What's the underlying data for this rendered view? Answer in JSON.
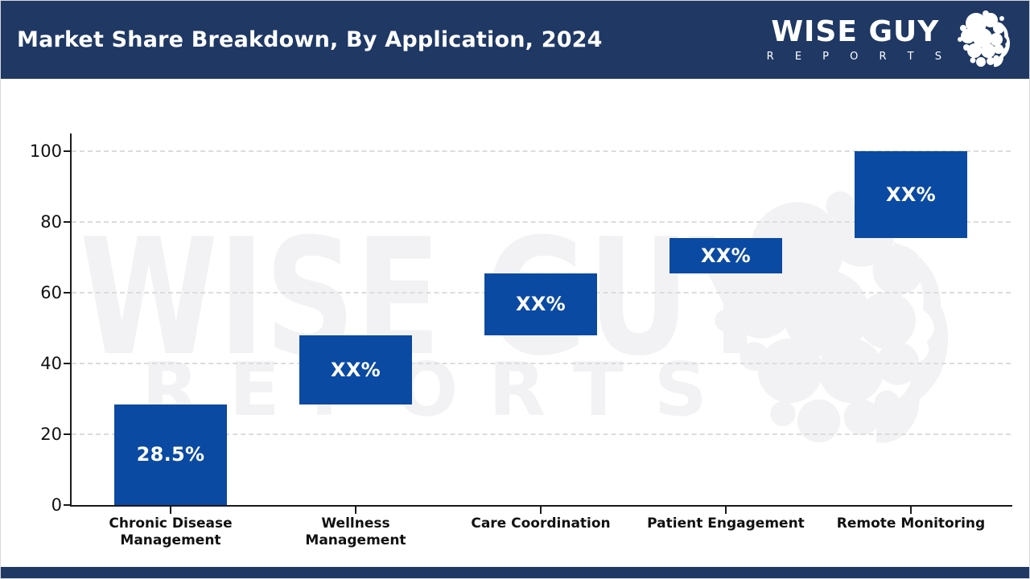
{
  "header": {
    "title": "Market Share Breakdown, By Application, 2024",
    "brand": {
      "line1": "WISE GUY",
      "line2": "R E P O R T S"
    }
  },
  "watermark": {
    "line1": "WISE GUY",
    "line2": "REPORTS"
  },
  "chart_data": {
    "type": "bar",
    "subtype": "waterfall",
    "title": "Market Share Breakdown, By Application, 2024",
    "xlabel": "",
    "ylabel": "",
    "categories": [
      "Chronic Disease\nManagement",
      "Wellness\nManagement",
      "Care Coordination",
      "Patient Engagement",
      "Remote Monitoring"
    ],
    "bars": [
      {
        "category": "Chronic Disease Management",
        "start": 0,
        "end": 28.5,
        "value": 28.5,
        "label": "28.5%"
      },
      {
        "category": "Wellness Management",
        "start": 28.5,
        "end": 48,
        "value": 19.5,
        "label": "XX%"
      },
      {
        "category": "Care Coordination",
        "start": 48,
        "end": 65.5,
        "value": 17.5,
        "label": "XX%"
      },
      {
        "category": "Patient Engagement",
        "start": 65.5,
        "end": 75.5,
        "value": 10,
        "label": "XX%"
      },
      {
        "category": "Remote Monitoring",
        "start": 75.5,
        "end": 100,
        "value": 24.5,
        "label": "XX%"
      }
    ],
    "yticks": [
      0,
      20,
      40,
      60,
      80,
      100
    ],
    "ylim": [
      0,
      105
    ],
    "grid": "horizontal-dashed",
    "legend": "none",
    "bar_color": "#0B4AA2",
    "bar_label_color": "#ffffff"
  },
  "colors": {
    "header_bg": "#1F3864",
    "footer_bg": "#1F3864",
    "bar": "#0B4AA2",
    "grid": "#dcdcdc",
    "axis": "#1a1a1a",
    "watermark": "#F2F2F4"
  }
}
